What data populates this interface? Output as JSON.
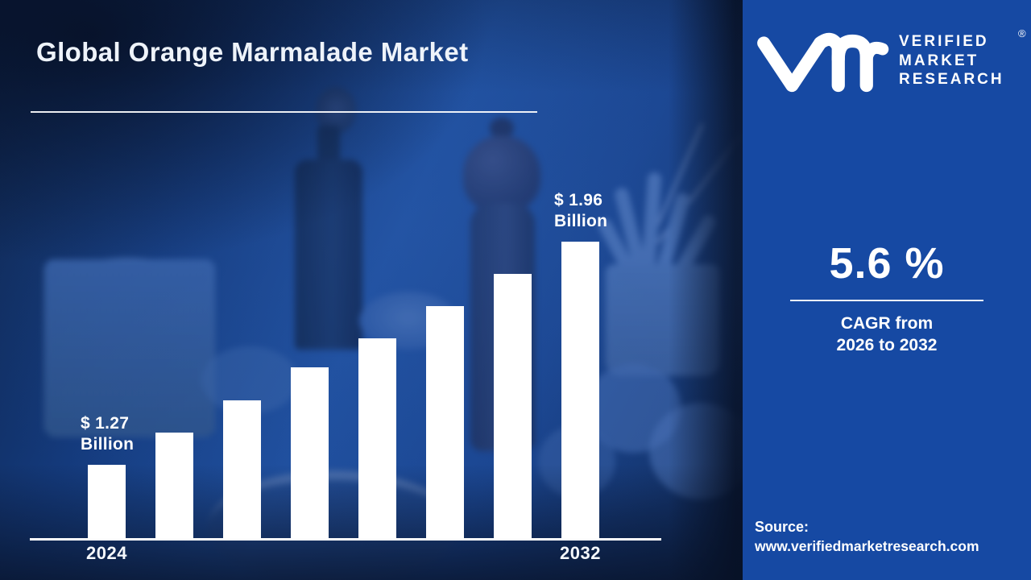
{
  "title": "Global Orange Marmalade Market",
  "chart_data": {
    "type": "bar",
    "title": "Global Orange Marmalade Market",
    "unit": "USD Billion",
    "values": [
      1.27,
      1.37,
      1.47,
      1.57,
      1.66,
      1.76,
      1.86,
      1.96
    ],
    "x_tick_labels": [
      {
        "index": 0,
        "label": "2024"
      },
      {
        "index": 7,
        "label": "2032"
      }
    ],
    "annotations": [
      {
        "index": 0,
        "label": "$ 1.27 Billion"
      },
      {
        "index": 7,
        "label": "$ 1.96 Billion"
      }
    ],
    "bar_color": "#ffffff",
    "y_axis": {
      "visible": false,
      "min": 1.04,
      "max": 2.0,
      "truncated_baseline": true
    },
    "grid": false,
    "legend": false
  },
  "side_panel": {
    "background_color": "#1649a3",
    "brand": {
      "line1": "VERIFIED",
      "line2": "MARKET",
      "line3": "RESEARCH",
      "registered_mark": "®",
      "glyph": "vmr-monogram"
    },
    "cagr_value": "5.6 %",
    "cagr_label_line1": "CAGR from",
    "cagr_label_line2": "2026 to 2032",
    "source_label": "Source:",
    "source_url": "www.verifiedmarketresearch.com"
  }
}
